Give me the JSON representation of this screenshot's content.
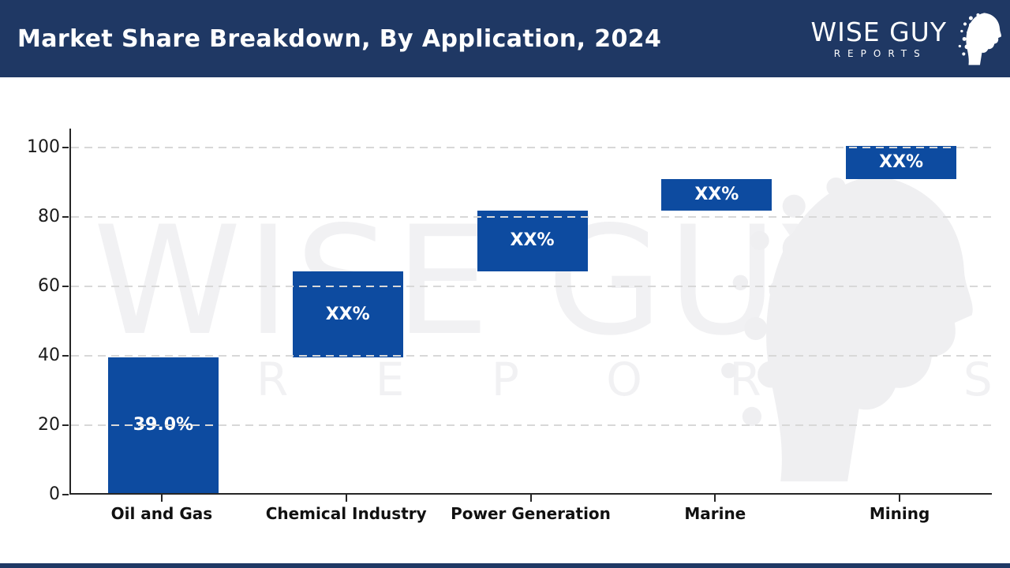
{
  "header": {
    "title": "Market Share Breakdown, By Application, 2024",
    "logo": {
      "line1": "WISE GUY",
      "line2": "REPORTS"
    }
  },
  "watermark": {
    "line1": "WISE GUY",
    "line2": "R E P O R T S"
  },
  "colors": {
    "header_bg": "#1f3864",
    "bar": "#0d4ba0",
    "gridline": "#d8d8d8",
    "axis": "#262626",
    "bar_label_text": "#ffffff",
    "watermark": "#f1f1f3"
  },
  "chart_data": {
    "type": "bar",
    "subtype": "waterfall",
    "title": "Market Share Breakdown, By Application, 2024",
    "categories": [
      "Oil and Gas",
      "Chemical Industry",
      "Power Generation",
      "Marine",
      "Mining"
    ],
    "bar_labels": [
      "39.0%",
      "XX%",
      "XX%",
      "XX%",
      "XX%"
    ],
    "values": [
      39.0,
      25.0,
      17.5,
      9.0,
      9.5
    ],
    "cumulative_start": [
      0,
      39.0,
      64.0,
      81.5,
      90.5
    ],
    "cumulative_end": [
      39.0,
      64.0,
      81.5,
      90.5,
      100.0
    ],
    "yticks": [
      0,
      20,
      40,
      60,
      80,
      100
    ],
    "ylim": [
      0,
      105.5
    ],
    "xlabel": "",
    "ylabel": "",
    "grid": "dashed-horizontal",
    "legend": "none"
  }
}
